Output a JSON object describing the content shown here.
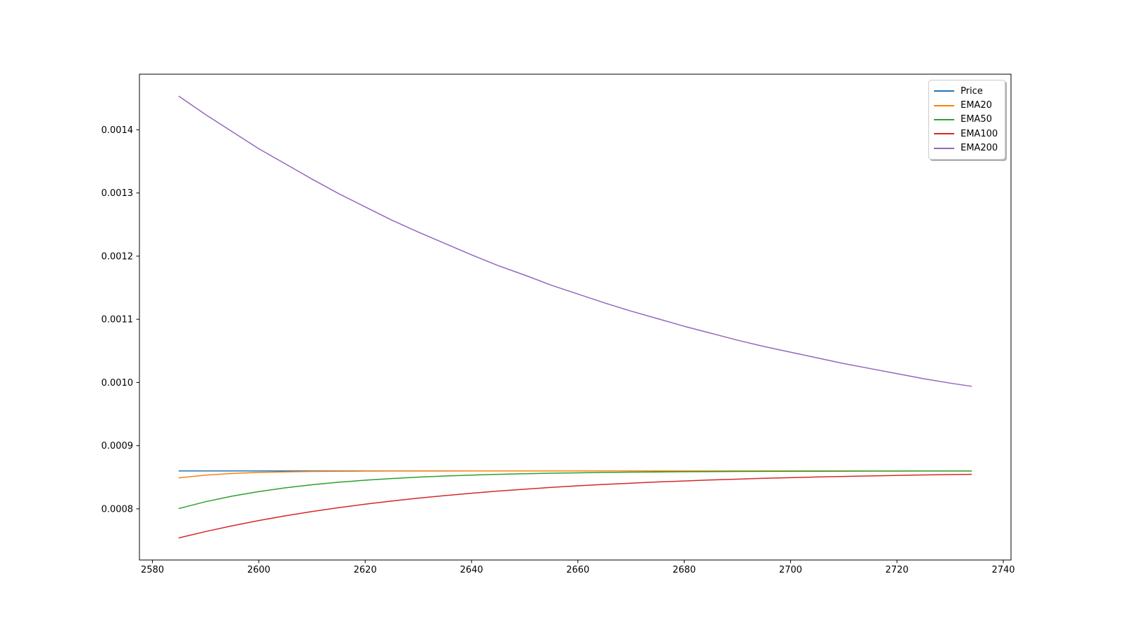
{
  "chart_data": {
    "type": "line",
    "title": "",
    "xlabel": "",
    "ylabel": "",
    "grid": false,
    "background_color": "#ffffff",
    "axis_color": "#000000",
    "legend": {
      "position": "upper-right",
      "border_color": "#cccccc",
      "shadow": true
    },
    "xlim": [
      2577.55,
      2741.45
    ],
    "ylim": [
      0.000719,
      0.001488
    ],
    "x_ticks": [
      {
        "value": 2580,
        "label": "2580"
      },
      {
        "value": 2600,
        "label": "2600"
      },
      {
        "value": 2620,
        "label": "2620"
      },
      {
        "value": 2640,
        "label": "2640"
      },
      {
        "value": 2660,
        "label": "2660"
      },
      {
        "value": 2680,
        "label": "2680"
      },
      {
        "value": 2700,
        "label": "2700"
      },
      {
        "value": 2720,
        "label": "2720"
      },
      {
        "value": 2740,
        "label": "2740"
      }
    ],
    "y_ticks": [
      {
        "value": 0.0008,
        "label": "0.0008"
      },
      {
        "value": 0.0009,
        "label": "0.0009"
      },
      {
        "value": 0.001,
        "label": "0.0010"
      },
      {
        "value": 0.0011,
        "label": "0.0011"
      },
      {
        "value": 0.0012,
        "label": "0.0012"
      },
      {
        "value": 0.0013,
        "label": "0.0013"
      },
      {
        "value": 0.0014,
        "label": "0.0014"
      }
    ],
    "x": [
      2585,
      2590,
      2595,
      2600,
      2605,
      2610,
      2615,
      2620,
      2625,
      2630,
      2635,
      2640,
      2645,
      2650,
      2655,
      2660,
      2665,
      2670,
      2675,
      2680,
      2685,
      2690,
      2695,
      2700,
      2705,
      2710,
      2715,
      2720,
      2725,
      2730,
      2734
    ],
    "series": [
      {
        "name": "Price",
        "color": "#1f77b4",
        "values": [
          0.00086,
          0.00086,
          0.00086,
          0.00086,
          0.00086,
          0.00086,
          0.00086,
          0.00086,
          0.00086,
          0.00086,
          0.00086,
          0.00086,
          0.00086,
          0.00086,
          0.00086,
          0.00086,
          0.00086,
          0.00086,
          0.00086,
          0.00086,
          0.00086,
          0.00086,
          0.00086,
          0.00086,
          0.00086,
          0.00086,
          0.00086,
          0.00086,
          0.00086,
          0.00086,
          0.00086
        ]
      },
      {
        "name": "EMA20",
        "color": "#ff7f0e",
        "values": [
          0.000849,
          0.0008533,
          0.000856,
          0.0008576,
          0.0008585,
          0.0008591,
          0.0008595,
          0.0008597,
          0.0008598,
          0.0008599,
          0.0008599,
          0.00086,
          0.00086,
          0.00086,
          0.00086,
          0.00086,
          0.00086,
          0.00086,
          0.00086,
          0.00086,
          0.00086,
          0.00086,
          0.00086,
          0.00086,
          0.00086,
          0.00086,
          0.00086,
          0.00086,
          0.00086,
          0.00086,
          0.00086
        ]
      },
      {
        "name": "EMA50",
        "color": "#2ca02c",
        "values": [
          0.0008005,
          0.0008113,
          0.0008201,
          0.0008273,
          0.0008333,
          0.0008381,
          0.0008421,
          0.0008453,
          0.000848,
          0.0008502,
          0.0008519,
          0.0008534,
          0.0008546,
          0.0008556,
          0.0008564,
          0.000857,
          0.0008576,
          0.000858,
          0.0008584,
          0.0008587,
          0.0008589,
          0.0008591,
          0.0008593,
          0.0008594,
          0.0008595,
          0.0008596,
          0.0008597,
          0.0008597,
          0.0008598,
          0.0008598,
          0.0008598
        ]
      },
      {
        "name": "EMA100",
        "color": "#d62728",
        "values": [
          0.000754,
          0.0007641,
          0.0007732,
          0.0007815,
          0.0007889,
          0.0007957,
          0.0008018,
          0.0008074,
          0.0008124,
          0.0008169,
          0.000821,
          0.0008247,
          0.0008281,
          0.0008311,
          0.0008339,
          0.0008364,
          0.0008386,
          0.0008406,
          0.0008425,
          0.0008441,
          0.0008457,
          0.000847,
          0.0008483,
          0.0008494,
          0.0008504,
          0.0008513,
          0.0008521,
          0.0008529,
          0.0008536,
          0.0008542,
          0.0008546
        ]
      },
      {
        "name": "EMA200",
        "color": "#9467bd",
        "values": [
          0.001453,
          0.001424,
          0.001397,
          0.00137,
          0.001346,
          0.001322,
          0.001299,
          0.001278,
          0.001257,
          0.001238,
          0.00122,
          0.001202,
          0.001185,
          0.00117,
          0.001154,
          0.00114,
          0.001126,
          0.001113,
          0.001101,
          0.001089,
          0.001078,
          0.001067,
          0.001057,
          0.001048,
          0.001039,
          0.00103,
          0.001022,
          0.001014,
          0.001006,
          0.000999,
          0.000994
        ]
      }
    ]
  }
}
